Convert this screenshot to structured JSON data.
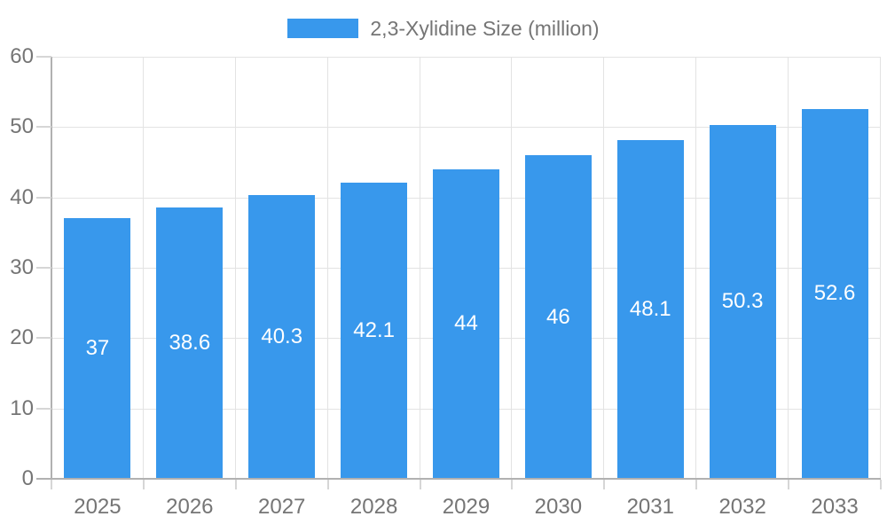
{
  "legend": {
    "label": "2,3-Xylidine Size (million)"
  },
  "chart_data": {
    "type": "bar",
    "title": "2,3-Xylidine Size (million)",
    "categories": [
      "2025",
      "2026",
      "2027",
      "2028",
      "2029",
      "2030",
      "2031",
      "2032",
      "2033"
    ],
    "series": [
      {
        "name": "2,3-Xylidine Size (million)",
        "values": [
          37,
          38.6,
          40.3,
          42.1,
          44,
          46,
          48.1,
          50.3,
          52.6
        ]
      }
    ],
    "value_labels": [
      "37",
      "38.6",
      "40.3",
      "42.1",
      "44",
      "46",
      "48.1",
      "50.3",
      "52.6"
    ],
    "xlabel": "",
    "ylabel": "",
    "ylim": [
      0,
      60
    ],
    "yticks": [
      0,
      10,
      20,
      30,
      40,
      50,
      60
    ],
    "grid": true,
    "legend_position": "top"
  },
  "colors": {
    "bar": "#3898EC",
    "grid": "#e3e3e3",
    "axis": "#b1b1b1",
    "tick": "#d6d6d6",
    "text": "#757575",
    "value_label": "#ffffff",
    "background": "#ffffff"
  }
}
